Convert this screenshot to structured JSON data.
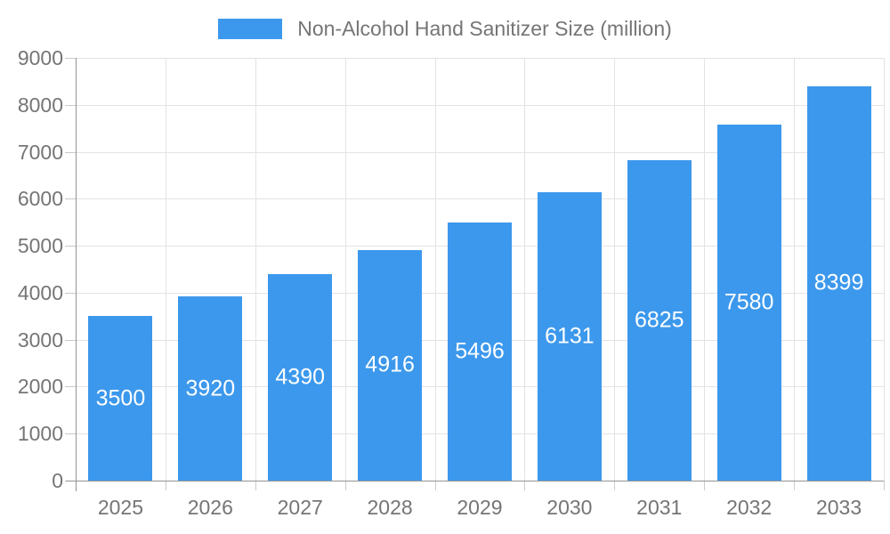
{
  "chart_data": {
    "type": "bar",
    "title": "",
    "legend": "Non-Alcohol Hand Sanitizer Size (million)",
    "legend_position": "top-center",
    "categories": [
      "2025",
      "2026",
      "2027",
      "2028",
      "2029",
      "2030",
      "2031",
      "2032",
      "2033"
    ],
    "values": [
      3500,
      3920,
      4390,
      4916,
      5496,
      6131,
      6825,
      7580,
      8399
    ],
    "xlabel": "",
    "ylabel": "",
    "ylim": [
      0,
      9000
    ],
    "y_ticks": [
      0,
      1000,
      2000,
      3000,
      4000,
      5000,
      6000,
      7000,
      8000,
      9000
    ],
    "grid": "horizontal-and-vertical",
    "bar_color": "#3c98ec",
    "bar_label_color": "#ffffff",
    "axis_text_color": "#757575",
    "gridline_color": "#e3e3e3",
    "axis_line_color": "#949494"
  }
}
